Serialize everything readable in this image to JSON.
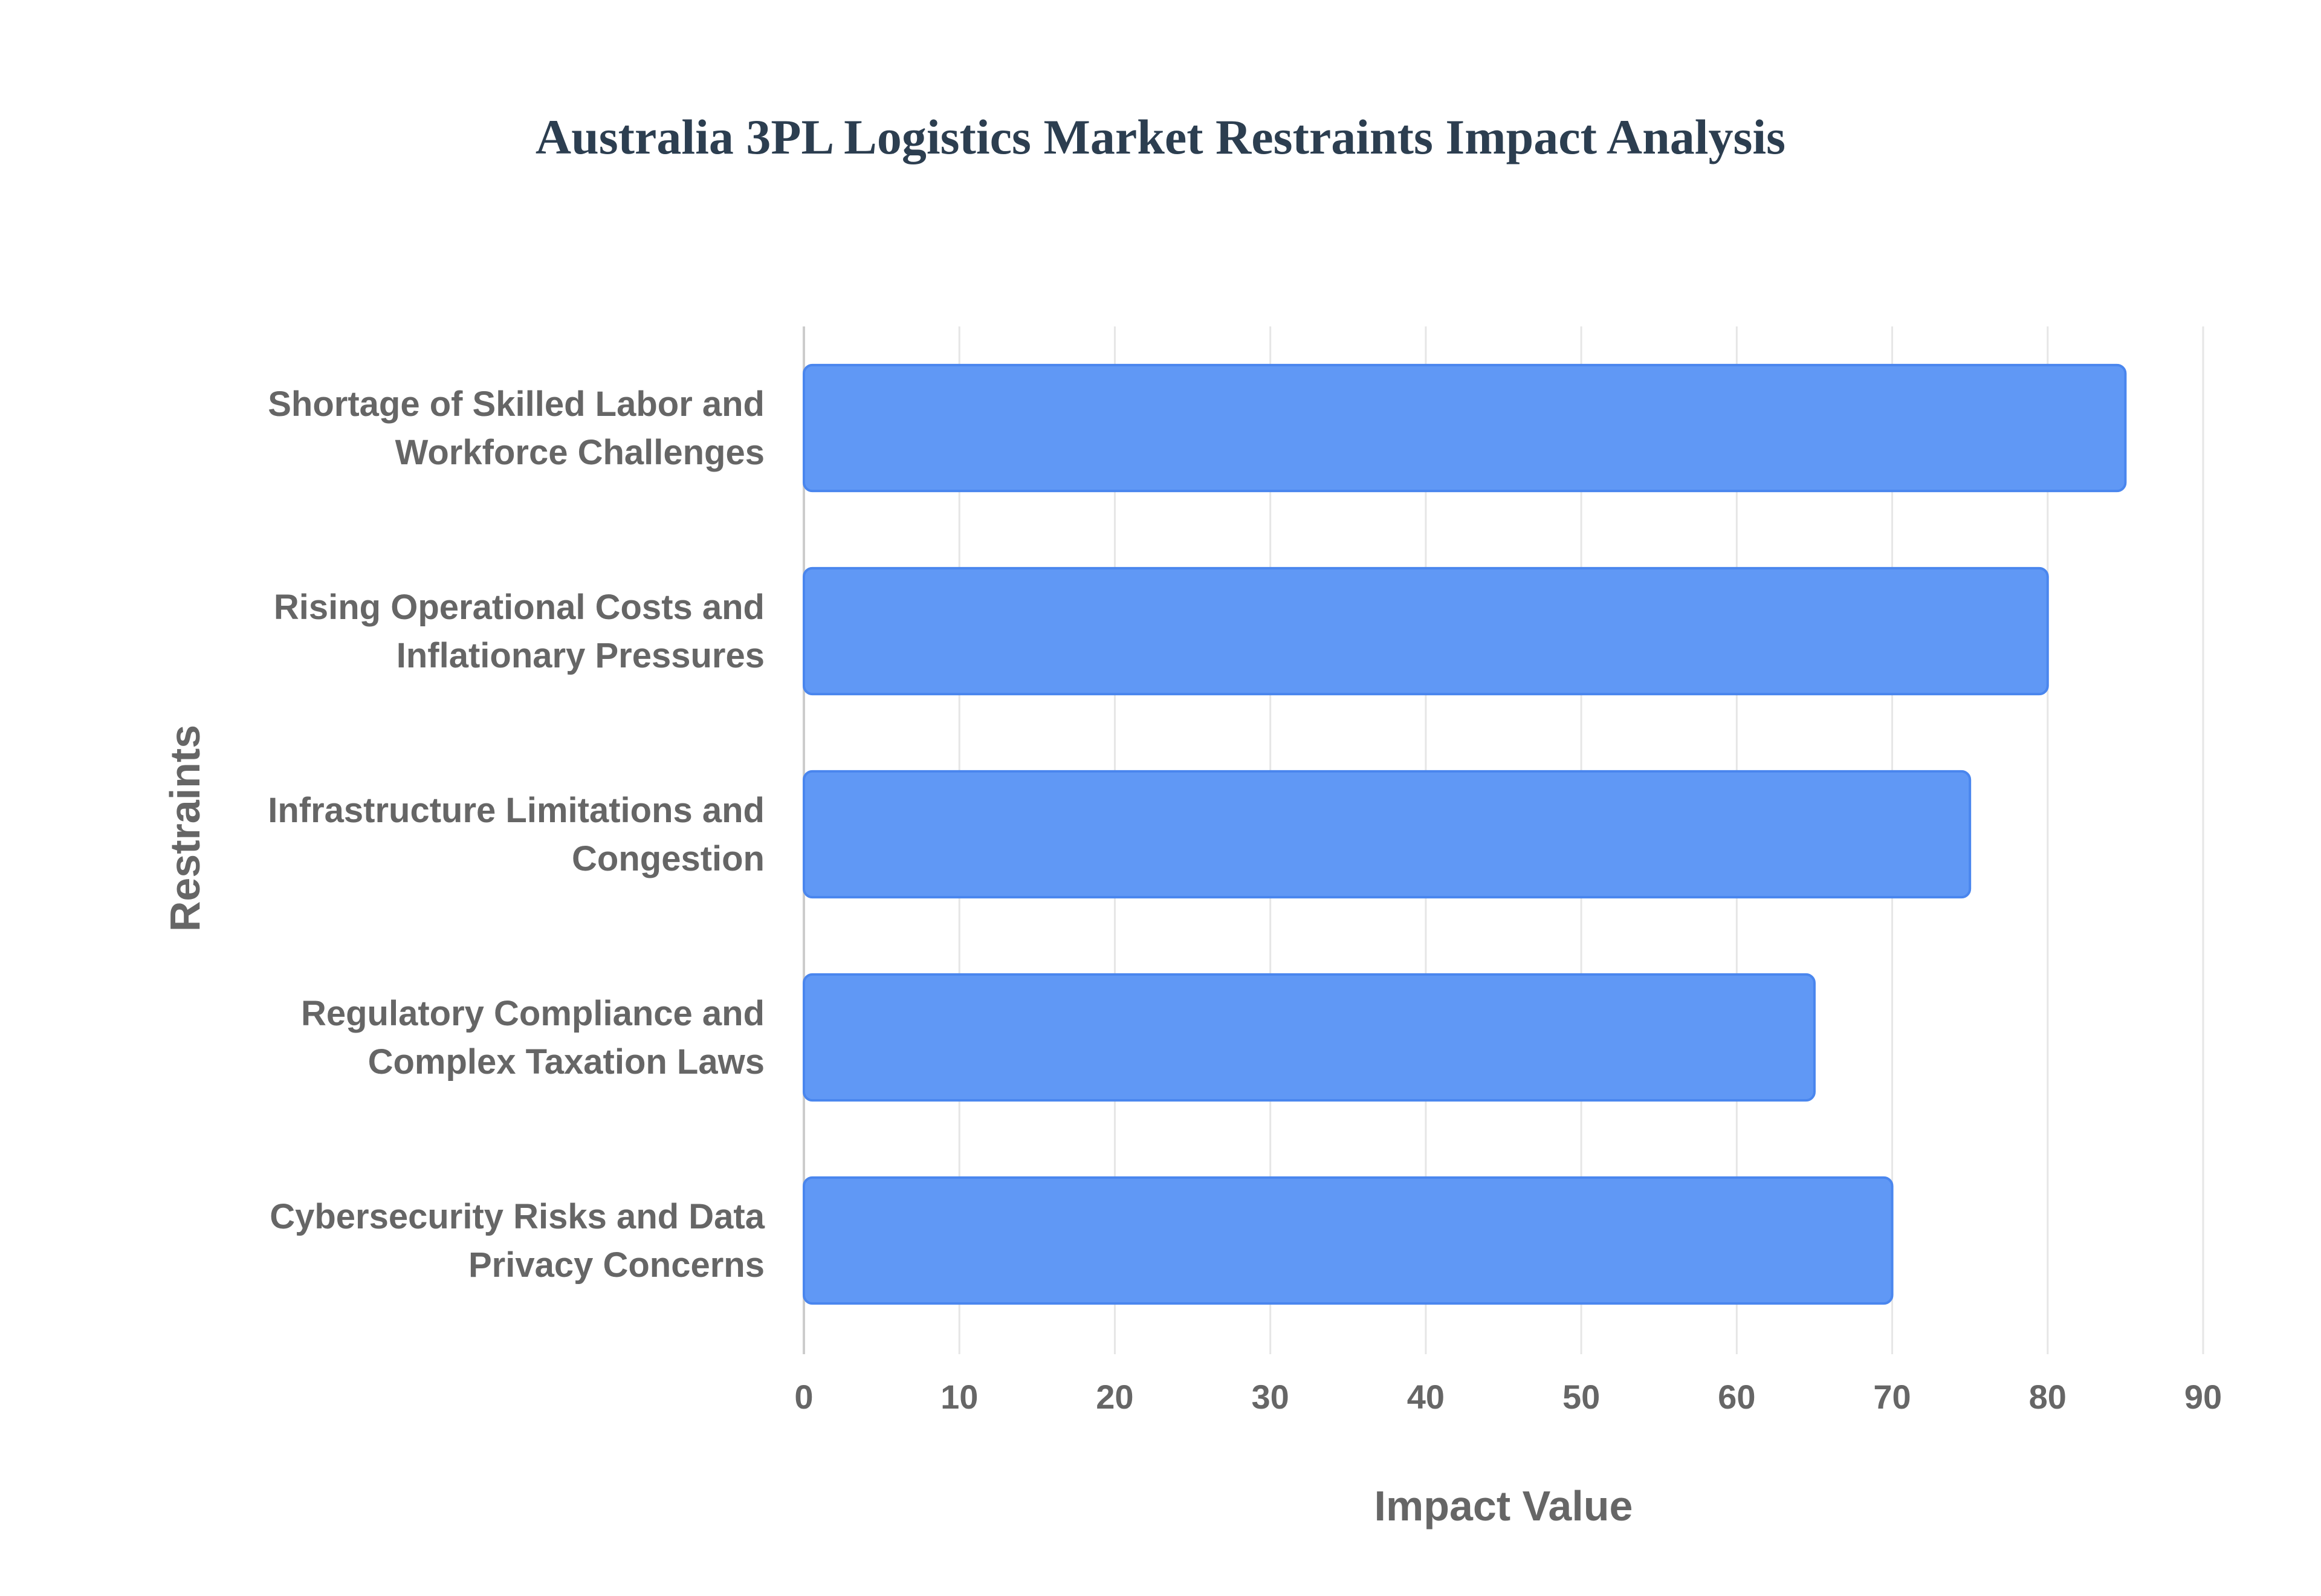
{
  "chart_data": {
    "type": "bar",
    "orientation": "horizontal",
    "title": "Australia 3PL Logistics Market Restraints Impact Analysis",
    "xlabel": "Impact Value",
    "ylabel": "Restraints",
    "categories": [
      [
        "Shortage of Skilled Labor and",
        "Workforce Challenges"
      ],
      [
        "Rising Operational Costs and",
        "Inflationary Pressures"
      ],
      [
        "Infrastructure Limitations and",
        "Congestion"
      ],
      [
        "Regulatory Compliance and",
        "Complex Taxation Laws"
      ],
      [
        "Cybersecurity Risks and Data",
        "Privacy Concerns"
      ]
    ],
    "values": [
      85,
      80,
      75,
      65,
      70
    ],
    "xlim": [
      0,
      90
    ],
    "xticks": [
      "0",
      "10",
      "20",
      "30",
      "40",
      "50",
      "60",
      "70",
      "80",
      "90"
    ],
    "grid": true,
    "legend": "none",
    "colors": {
      "bar_fill": "#6098f5",
      "bar_stroke": "#4a86ee",
      "grid": "#e6e6e6",
      "text": "#666666"
    }
  }
}
